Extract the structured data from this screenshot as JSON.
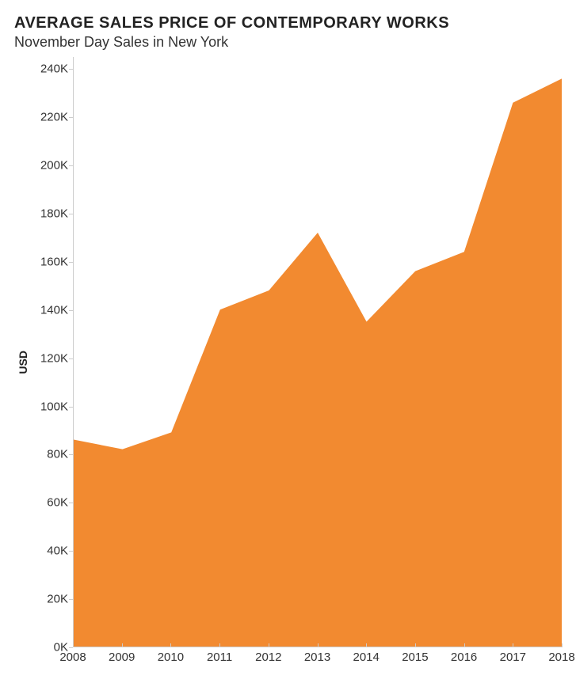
{
  "chart": {
    "type": "area",
    "title": "AVERAGE SALES PRICE OF CONTEMPORARY WORKS",
    "subtitle": "November Day Sales in New York",
    "title_fontsize": 20,
    "subtitle_fontsize": 18,
    "ylabel": "USD",
    "ylabel_fontsize": 14,
    "background_color": "#ffffff",
    "area_color": "#f28a30",
    "axis_color": "#cccccc",
    "text_color": "#333333",
    "x": {
      "categories": [
        "2008",
        "2009",
        "2010",
        "2011",
        "2012",
        "2013",
        "2014",
        "2015",
        "2016",
        "2017",
        "2018"
      ],
      "tick_fontsize": 15
    },
    "y": {
      "min": 0,
      "max": 245000,
      "ticks": [
        0,
        20000,
        40000,
        60000,
        80000,
        100000,
        120000,
        140000,
        160000,
        180000,
        200000,
        220000,
        240000
      ],
      "tick_labels": [
        "0K",
        "20K",
        "40K",
        "60K",
        "80K",
        "100K",
        "120K",
        "140K",
        "160K",
        "180K",
        "200K",
        "220K",
        "240K"
      ],
      "tick_fontsize": 15
    },
    "values": [
      86000,
      82000,
      89000,
      140000,
      148000,
      172000,
      135000,
      156000,
      164000,
      226000,
      236000
    ]
  }
}
